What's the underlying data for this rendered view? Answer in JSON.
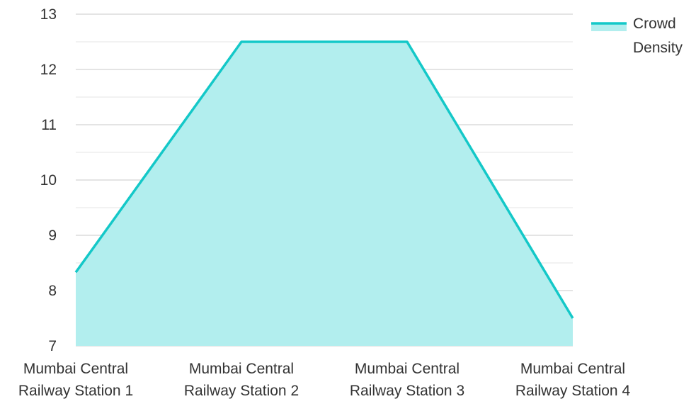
{
  "chart_data": {
    "type": "area",
    "categories": [
      [
        "Mumbai Central",
        "Railway Station 1"
      ],
      [
        "Mumbai Central",
        "Railway Station 2"
      ],
      [
        "Mumbai Central",
        "Railway Station 3"
      ],
      [
        "Mumbai Central",
        "Railway Station 4"
      ]
    ],
    "series": [
      {
        "name": "Crowd Density",
        "values": [
          8.33,
          12.5,
          12.5,
          7.5
        ]
      }
    ],
    "ylim": [
      7,
      13
    ],
    "yticks": [
      "7",
      "8",
      "9",
      "10",
      "11",
      "12",
      "13"
    ],
    "grid": true,
    "legend": {
      "position": "top-right",
      "lines": [
        "Crowd",
        "Density"
      ]
    },
    "colors": {
      "line": "#14c8c8",
      "fill": "#b2eeee",
      "grid_major": "#c8c8c8",
      "grid_minor": "#e6e6e6",
      "text": "#333333"
    }
  }
}
